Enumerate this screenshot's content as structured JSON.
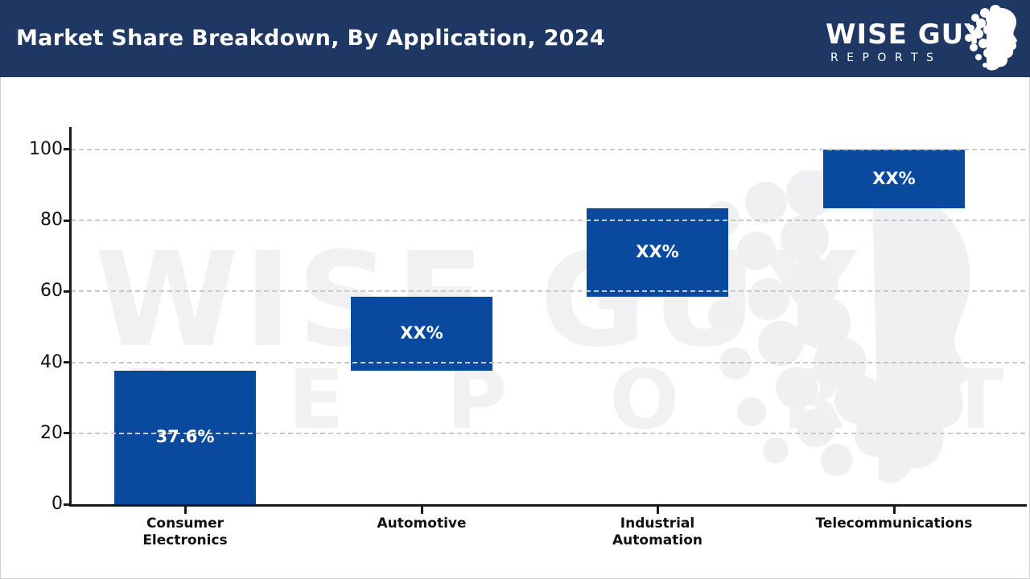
{
  "header": {
    "title": "Market Share Breakdown, By Application, 2024",
    "bg_color": "#1f3763",
    "brand": {
      "line1": "WISE GUY",
      "line2": "R E P O R T S"
    }
  },
  "watermark": {
    "line1": "WISE GUY",
    "line2": "R E P O R T S"
  },
  "chart_data": {
    "type": "bar",
    "subtype": "waterfall",
    "title": "Market Share Breakdown, By Application, 2024",
    "categories": [
      [
        "Consumer",
        "Electronics"
      ],
      [
        "Automotive"
      ],
      [
        "Industrial",
        "Automation"
      ],
      [
        "Telecommunications"
      ]
    ],
    "segments": [
      {
        "start": 0,
        "end": 37.6,
        "label": "37.6%"
      },
      {
        "start": 37.6,
        "end": 58.4,
        "label": "XX%"
      },
      {
        "start": 58.4,
        "end": 83.3,
        "label": "XX%"
      },
      {
        "start": 83.3,
        "end": 100.0,
        "label": "XX%"
      }
    ],
    "yticks": [
      0,
      20,
      40,
      60,
      80,
      100
    ],
    "ylim": [
      0,
      105
    ],
    "xlabel": "",
    "ylabel": "",
    "grid": "horizontal-dashed",
    "legend": "none",
    "bar_color": "#0a4a9e",
    "grid_color": "#c9c9c9"
  }
}
